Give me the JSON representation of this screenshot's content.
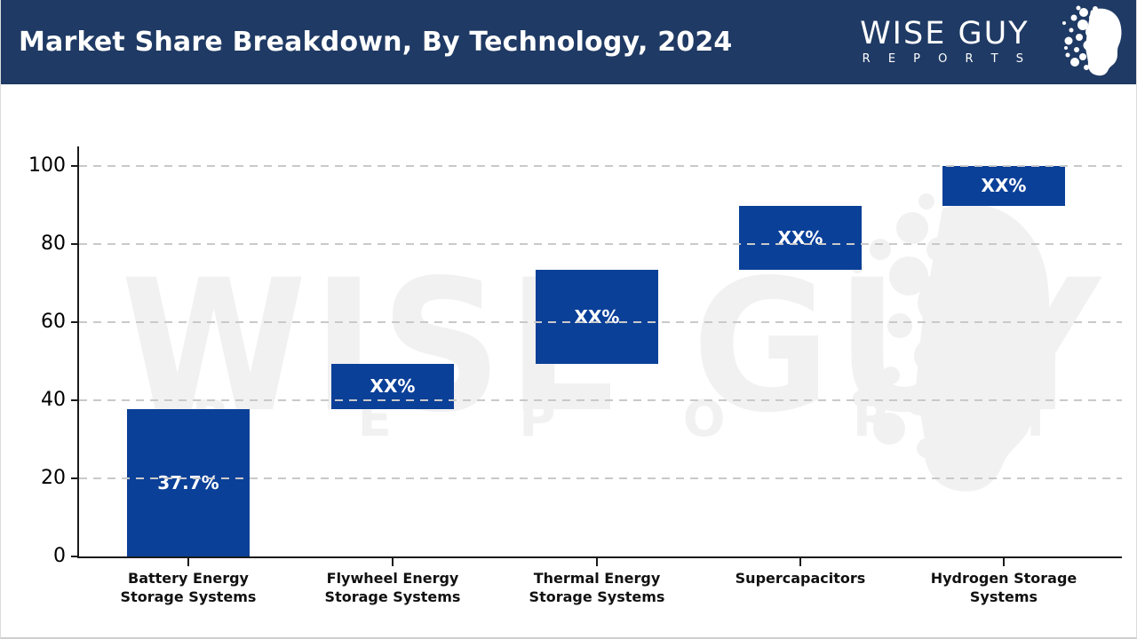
{
  "header": {
    "title": "Market Share Breakdown, By Technology, 2024",
    "logo": {
      "line1": "WISE GUY",
      "line2": "R E P O R T S"
    }
  },
  "watermark": {
    "line1": "WISE GUY",
    "line2": "R E P O R T S"
  },
  "chart_data": {
    "type": "bar",
    "subtype": "waterfall",
    "title": "Market Share Breakdown, By Technology, 2024",
    "categories": [
      "Battery Energy Storage Systems",
      "Flywheel Energy Storage Systems",
      "Thermal Energy Storage Systems",
      "Supercapacitors",
      "Hydrogen Storage Systems"
    ],
    "category_label_lines": [
      [
        "Battery Energy",
        "Storage Systems"
      ],
      [
        "Flywheel Energy",
        "Storage Systems"
      ],
      [
        "Thermal Energy",
        "Storage Systems"
      ],
      [
        "Supercapacitors"
      ],
      [
        "Hydrogen Storage",
        "Systems"
      ]
    ],
    "segments": [
      {
        "category": "Battery Energy Storage Systems",
        "start": 0,
        "end": 37.7,
        "label": "37.7%"
      },
      {
        "category": "Flywheel Energy Storage Systems",
        "start": 37.7,
        "end": 49.4,
        "label": "XX%"
      },
      {
        "category": "Thermal Energy Storage Systems",
        "start": 49.4,
        "end": 73.4,
        "label": "XX%"
      },
      {
        "category": "Supercapacitors",
        "start": 73.4,
        "end": 89.8,
        "label": "XX%"
      },
      {
        "category": "Hydrogen Storage Systems",
        "start": 89.8,
        "end": 100,
        "label": "XX%"
      }
    ],
    "xlabel": "",
    "ylabel": "",
    "ylim": [
      0,
      105
    ],
    "yticks": [
      0,
      20,
      40,
      60,
      80,
      100
    ],
    "grid": "horizontal dashed, drawn above bars",
    "legend": "none"
  },
  "colors": {
    "header_bg": "#1f3a64",
    "title_text": "#ffffff",
    "bar": "#0b4098",
    "bar_label": "#ffffff",
    "grid": "#c9c9c9",
    "axis": "#1a1a1a",
    "watermark": "#f1f1f1"
  }
}
